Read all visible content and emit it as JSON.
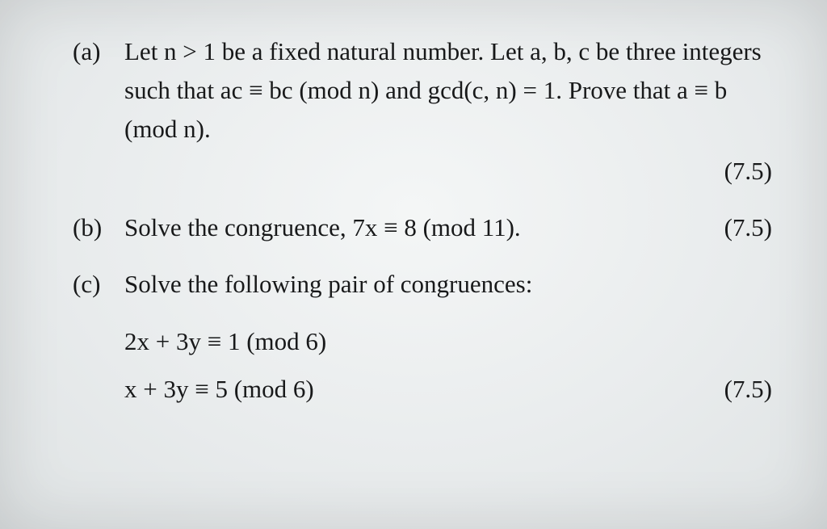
{
  "colors": {
    "text": "#18191a",
    "background_center": "#f4f6f6",
    "background_edge": "#dfe3e4"
  },
  "typography": {
    "font_family": "Times New Roman",
    "body_fontsize_pt": 23,
    "line_height": 1.55
  },
  "items": [
    {
      "label": "(a)",
      "body": "Let n > 1 be a fixed natural number. Let a, b, c be three integers such that ac ≡ bc (mod n) and gcd(c, n) = 1. Prove that a ≡ b (mod n).",
      "marks": "(7.5)",
      "marks_placement": "below-right"
    },
    {
      "label": "(b)",
      "body": "Solve the congruence, 7x ≡ 8 (mod 11).",
      "marks": "(7.5)",
      "marks_placement": "inline-right"
    },
    {
      "label": "(c)",
      "body": "Solve the following pair of congruences:",
      "equations": [
        "2x + 3y ≡ 1 (mod 6)",
        "x + 3y ≡ 5 (mod 6)"
      ],
      "marks": "(7.5)",
      "marks_placement": "last-line-right"
    }
  ]
}
